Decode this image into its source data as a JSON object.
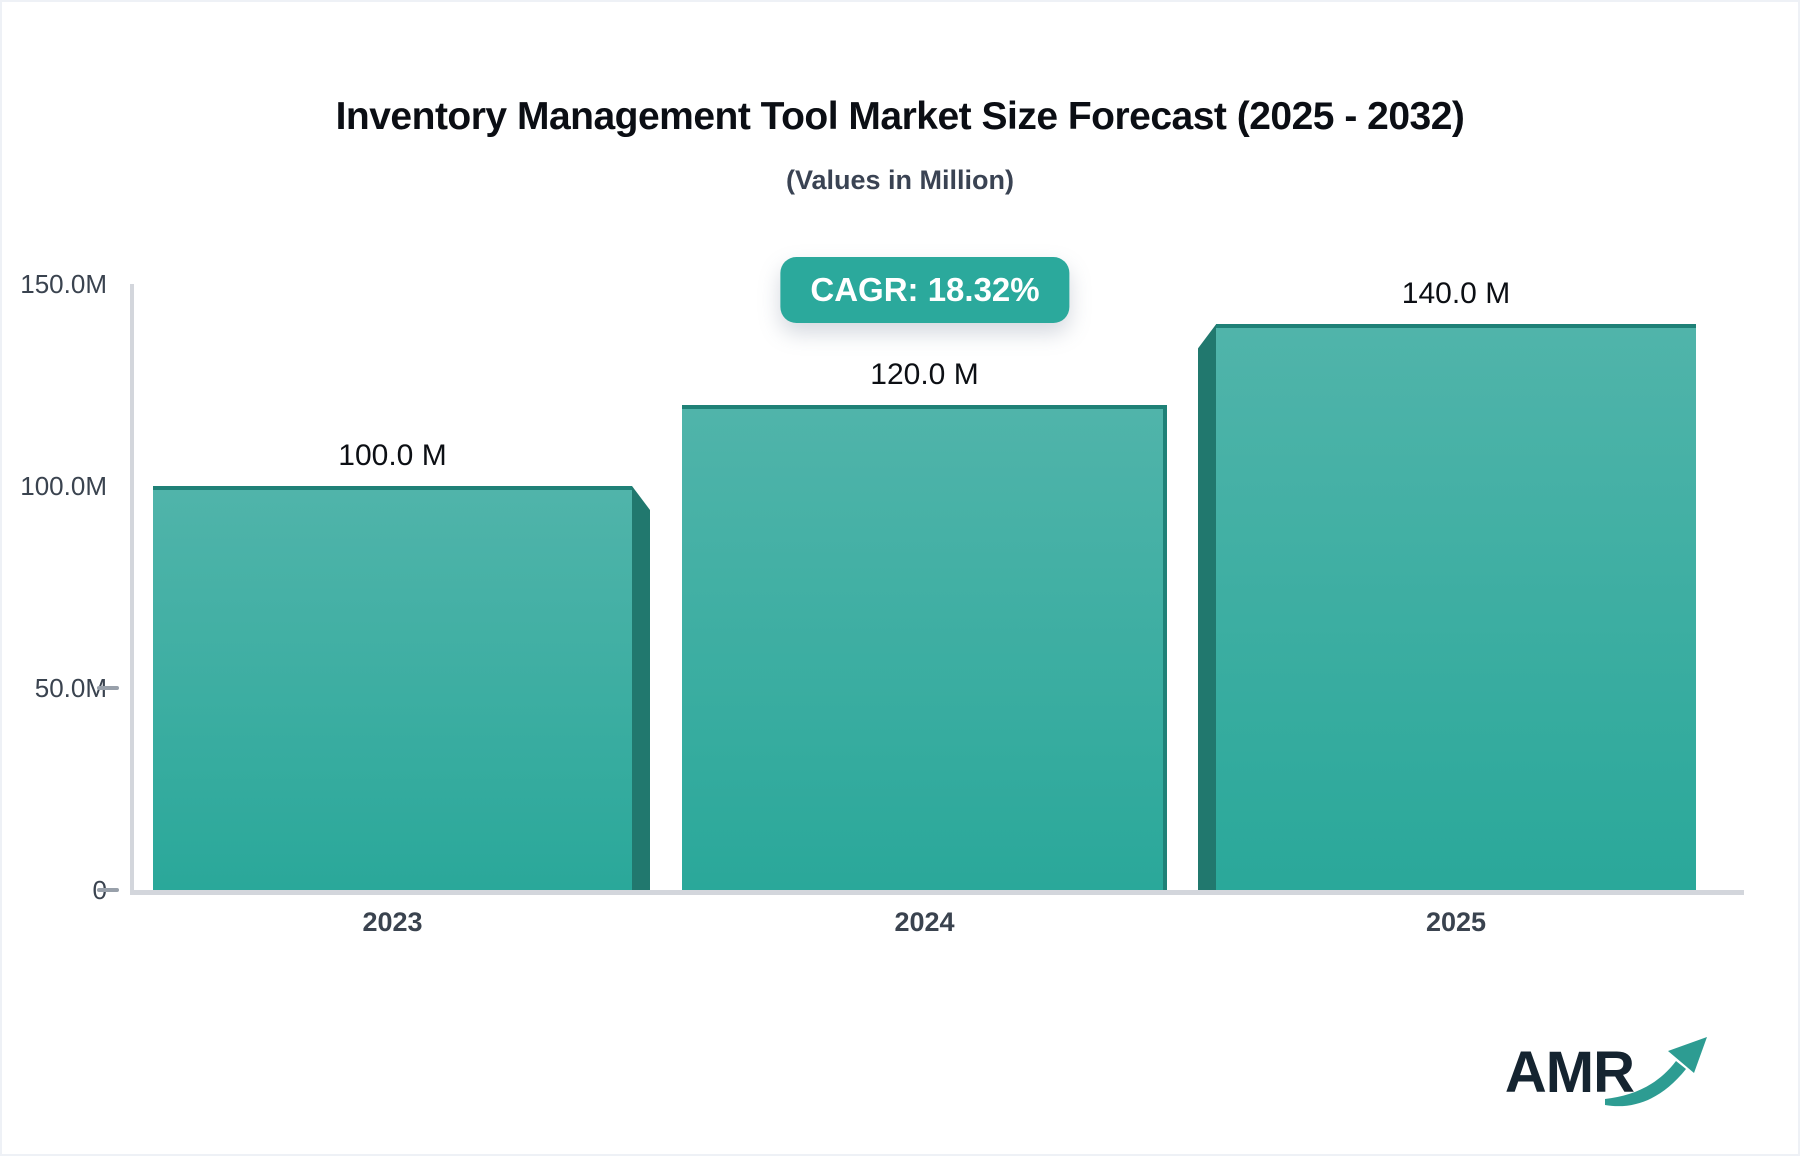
{
  "chart_data": {
    "type": "bar",
    "title": "Inventory Management Tool Market Size Forecast (2025 - 2032)",
    "subtitle": "(Values in Million)",
    "cagr_label": "CAGR: 18.32%",
    "categories": [
      "2023",
      "2024",
      "2025"
    ],
    "values": [
      100,
      120,
      140
    ],
    "data_labels": [
      "100.0 M",
      "120.0 M",
      "140.0 M"
    ],
    "ylim": [
      0,
      150
    ],
    "yticks": [
      {
        "label": "150.0M",
        "value": 150,
        "dash": false
      },
      {
        "label": "100.0M",
        "value": 100,
        "dash": false
      },
      {
        "label": "50.0M",
        "value": 50,
        "dash": true
      },
      {
        "label": "0",
        "value": 0,
        "dash": true
      }
    ],
    "grid": false,
    "legend": false,
    "xlabel": "",
    "ylabel": "",
    "colors": {
      "bar_gradient_top": "#50b4aa",
      "bar_gradient_bottom": "#2aa89a",
      "bar_edge": "#1f8177",
      "bar_side": "#21786e",
      "axis_line": "#d3d6dc",
      "tick_dash": "#98a0aa",
      "badge_bg": "#2ba99c",
      "badge_text": "#ffffff",
      "logo_arrow": "#2d9c92"
    }
  },
  "logo": {
    "text": "AMR"
  }
}
